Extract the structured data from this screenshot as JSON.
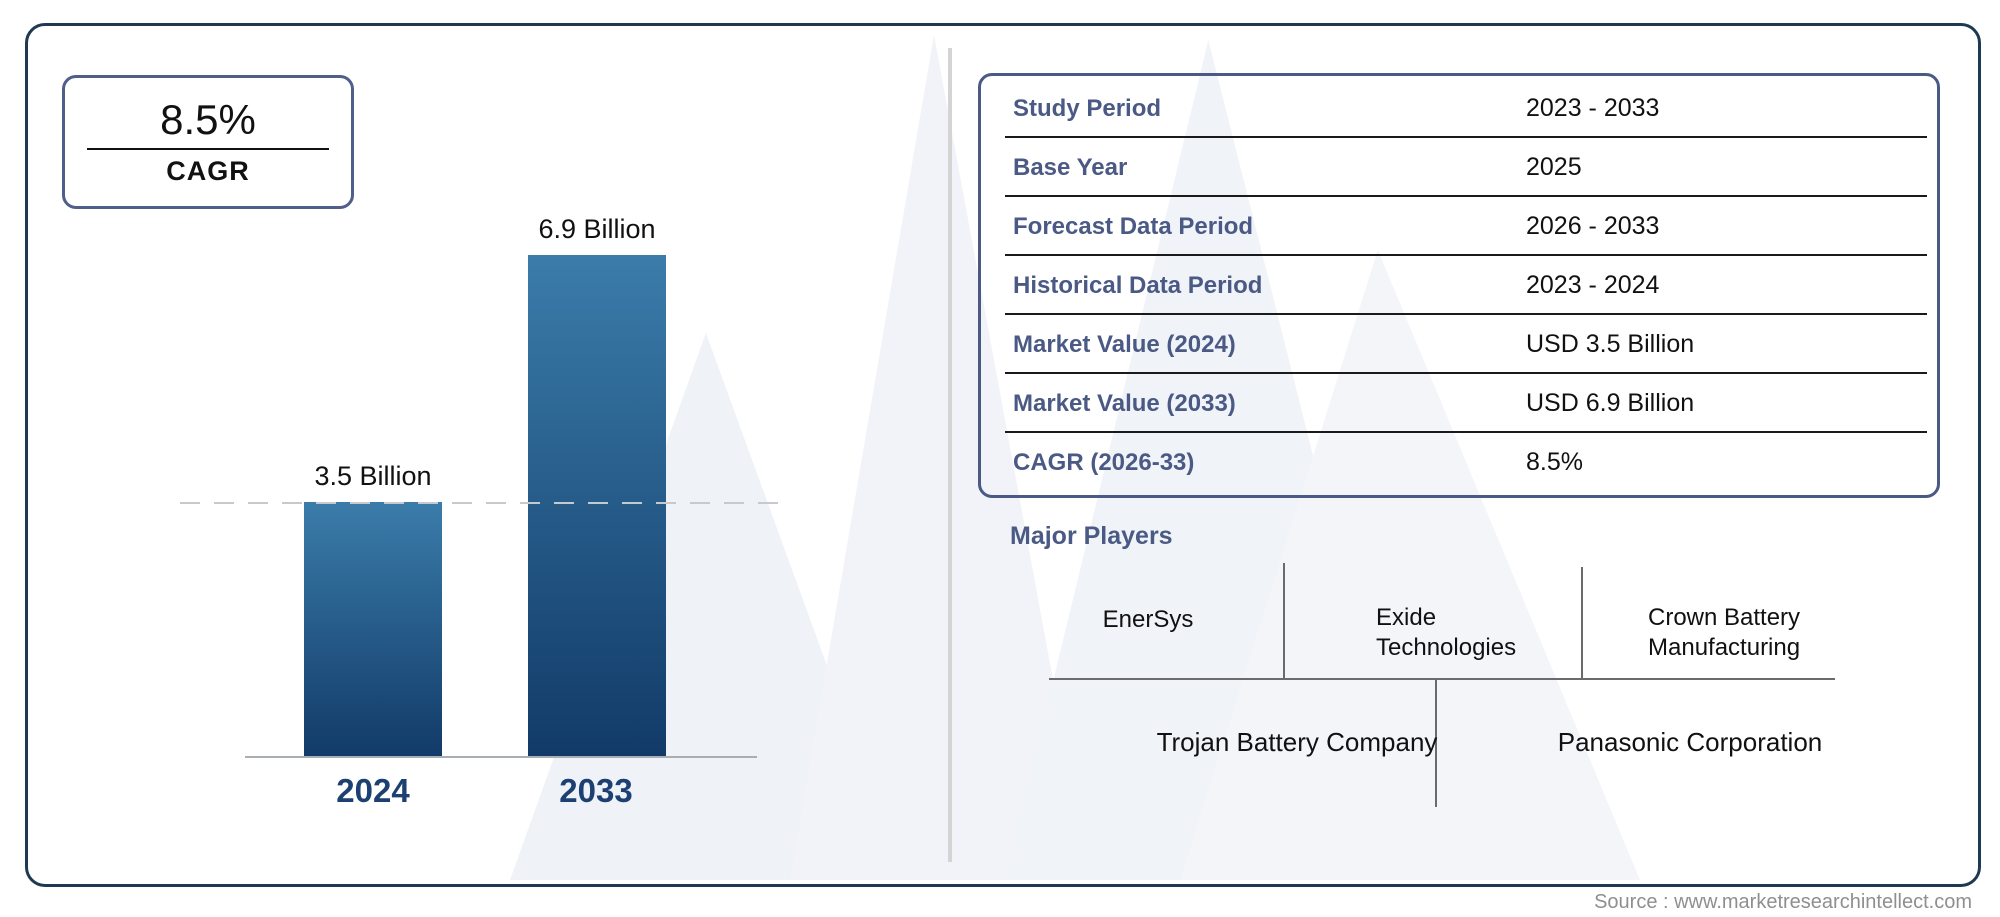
{
  "cagr_box": {
    "value": "8.5%",
    "label": "CAGR"
  },
  "chart_data": {
    "type": "bar",
    "categories": [
      "2024",
      "2033"
    ],
    "values": [
      3.5,
      6.9
    ],
    "value_labels": [
      "3.5 Billion",
      "6.9 Billion"
    ],
    "unit": "USD Billion",
    "ylim": [
      0,
      6.9
    ],
    "grid": false,
    "reference_line": "dashed line at 3.5 Billion level",
    "bar_color_top": "#3b7cab",
    "bar_color_bottom": "#123a68"
  },
  "info_table": {
    "rows": [
      {
        "label": "Study Period",
        "value": "2023 - 2033"
      },
      {
        "label": "Base Year",
        "value": "2025"
      },
      {
        "label": "Forecast Data Period",
        "value": "2026 - 2033"
      },
      {
        "label": "Historical Data Period",
        "value": "2023 - 2024"
      },
      {
        "label": "Market Value (2024)",
        "value": "USD 3.5 Billion"
      },
      {
        "label": "Market Value (2033)",
        "value": "USD 6.9 Billion"
      },
      {
        "label": "CAGR (2026-33)",
        "value": "8.5%"
      }
    ]
  },
  "major_players": {
    "heading": "Major Players",
    "names": [
      "EnerSys",
      "Exide Technologies",
      "Crown Battery Manufacturing",
      "Trojan Battery Company",
      "Panasonic Corporation"
    ]
  },
  "source": "Source : www.marketresearchintellect.com",
  "colors": {
    "frame_border": "#1d3a52",
    "accent_slate": "#4a5a85",
    "year_label": "#1d4073",
    "divider_gray": "#d4d4d4",
    "source_gray": "#8f8f8f"
  }
}
